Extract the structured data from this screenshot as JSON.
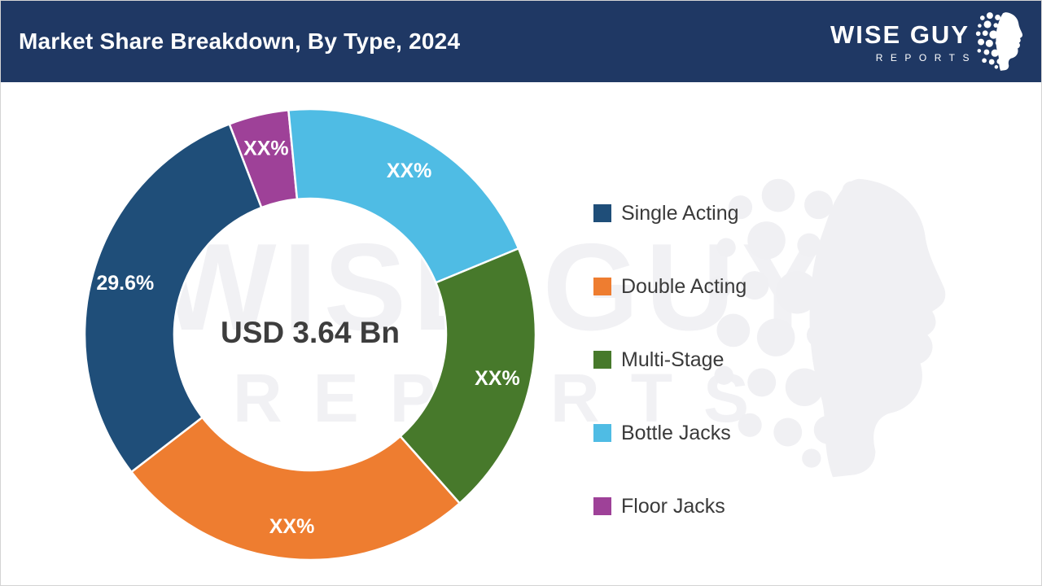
{
  "header": {
    "title": "Market Share Breakdown, By Type, 2024",
    "header_bg": "#1f3864",
    "logo": {
      "line1": "WISE GUY",
      "line2": "REPORTS"
    }
  },
  "watermark": {
    "line1": "WISE GUY",
    "line2": "REPORTS"
  },
  "chart_data": {
    "type": "donut",
    "title": "Market Share Breakdown, By Type, 2024",
    "center_label": "USD 3.64 Bn",
    "units": "percent market share",
    "start_angle_deg": -21,
    "clockwise": true,
    "inner_radius_ratio": 0.6,
    "legend_position": "right",
    "segments": [
      {
        "name": "Single Acting",
        "label": "29.6%",
        "value_pct": 29.6,
        "color": "#1f4e79"
      },
      {
        "name": "Double Acting",
        "label": "XX%",
        "value_pct": 26.1,
        "color": "#ee7d30"
      },
      {
        "name": "Multi-Stage",
        "label": "XX%",
        "value_pct": 19.7,
        "color": "#47792b"
      },
      {
        "name": "Bottle Jacks",
        "label": "XX%",
        "value_pct": 20.3,
        "color": "#4fbce4"
      },
      {
        "name": "Floor Jacks",
        "label": "XX%",
        "value_pct": 4.3,
        "color": "#9e4198"
      }
    ],
    "draw_order": [
      "Floor Jacks",
      "Bottle Jacks",
      "Multi-Stage",
      "Double Acting",
      "Single Acting"
    ]
  }
}
